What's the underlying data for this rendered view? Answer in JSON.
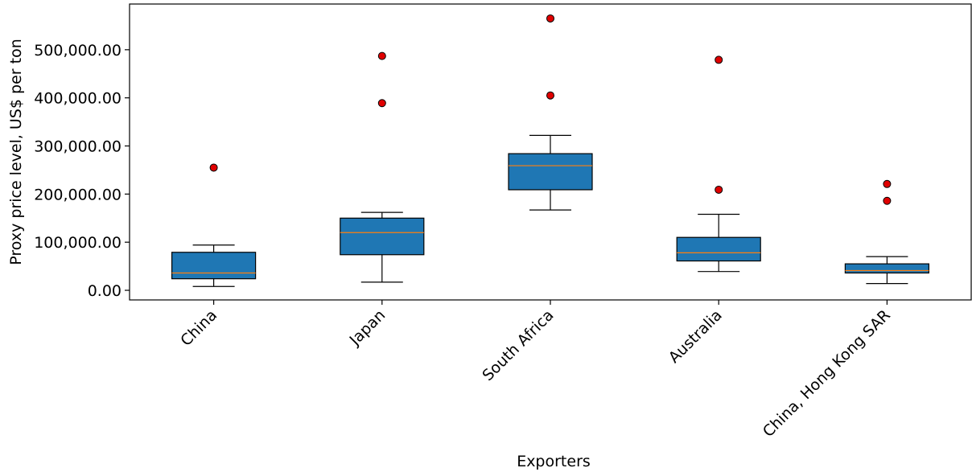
{
  "chart_data": {
    "type": "box",
    "xlabel": "Exporters",
    "ylabel": "Proxy price level, US$ per ton",
    "ylim": [
      -20000,
      595000
    ],
    "yticks": [
      0,
      100000,
      200000,
      300000,
      400000,
      500000
    ],
    "ytick_labels": [
      "0.00",
      "100,000.00",
      "200,000.00",
      "300,000.00",
      "400,000.00",
      "500,000.00"
    ],
    "grid": false,
    "x_tick_rotation": -45,
    "colors": {
      "box_fill": "#1f77b4",
      "median": "#ff7f0e",
      "outlier_fill": "#e00000",
      "edge": "#000000"
    },
    "categories": [
      "China",
      "Japan",
      "South Africa",
      "Australia",
      "China, Hong Kong SAR"
    ],
    "boxes": [
      {
        "whisker_low": 8000,
        "q1": 24000,
        "median": 36000,
        "q3": 79000,
        "whisker_high": 94000,
        "outliers": [
          255000
        ]
      },
      {
        "whisker_low": 17000,
        "q1": 74000,
        "median": 120000,
        "q3": 150000,
        "whisker_high": 162000,
        "outliers": [
          389000,
          487000
        ]
      },
      {
        "whisker_low": 167000,
        "q1": 209000,
        "median": 259000,
        "q3": 284000,
        "whisker_high": 322000,
        "outliers": [
          405000,
          565000
        ]
      },
      {
        "whisker_low": 39000,
        "q1": 61000,
        "median": 78000,
        "q3": 110000,
        "whisker_high": 158000,
        "outliers": [
          209000,
          479000
        ]
      },
      {
        "whisker_low": 14000,
        "q1": 36000,
        "median": 41000,
        "q3": 55000,
        "whisker_high": 70000,
        "outliers": [
          186000,
          221000
        ]
      }
    ]
  }
}
